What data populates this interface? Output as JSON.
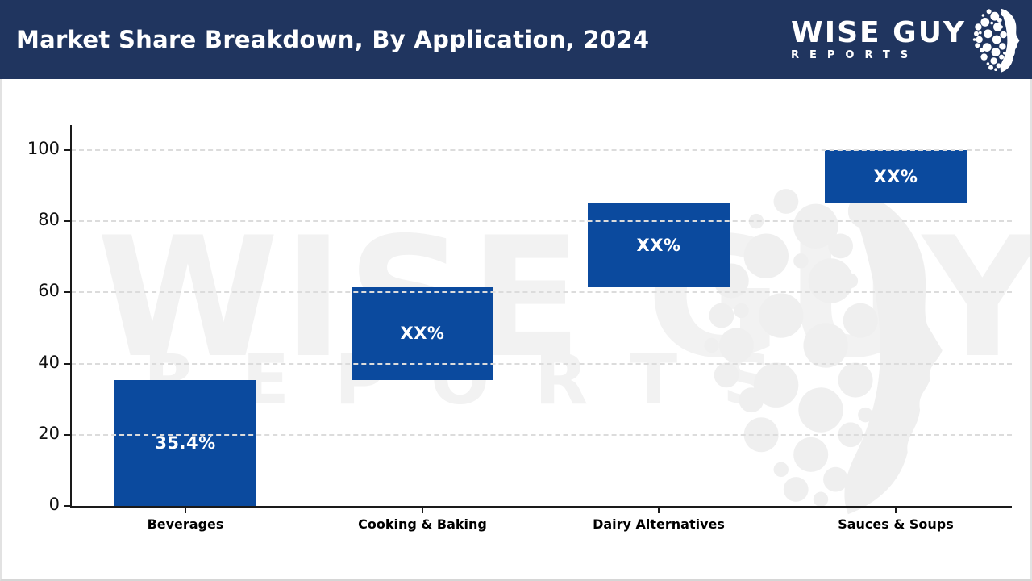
{
  "header": {
    "title": "Market Share Breakdown, By Application, 2024",
    "logo": {
      "line1": "WISE GUY",
      "line2": "REPORTS"
    }
  },
  "watermark": {
    "line1": "WISE GUY",
    "line2": "REPORTS"
  },
  "chart_data": {
    "type": "bar",
    "subtype": "waterfall-floating-segments",
    "title": "Market Share Breakdown, By Application, 2024",
    "categories": [
      "Beverages",
      "Cooking & Baking",
      "Dairy Alternatives",
      "Sauces & Soups"
    ],
    "segments": [
      {
        "category": "Beverages",
        "start": 0,
        "end": 35.4,
        "label": "35.4%"
      },
      {
        "category": "Cooking & Baking",
        "start": 35.4,
        "end": 61.5,
        "label": "XX%"
      },
      {
        "category": "Dairy Alternatives",
        "start": 61.5,
        "end": 85,
        "label": "XX%"
      },
      {
        "category": "Sauces & Soups",
        "start": 85,
        "end": 100,
        "label": "XX%"
      }
    ],
    "yticks": [
      0,
      20,
      40,
      60,
      80,
      100
    ],
    "ylim": [
      0,
      107
    ],
    "xlabel": "",
    "ylabel": "",
    "grid": "horizontal-dashed",
    "legend": "none",
    "bar_color": "#0b4a9e",
    "label_color": "#ffffff"
  },
  "colors": {
    "header_bg": "#20355f",
    "bar": "#0b4a9e",
    "axis": "#1a1a1a",
    "grid_dash": "#dcdcdc",
    "watermark": "#f2f2f2",
    "page_border": "#d6d6d6",
    "title_text": "#ffffff",
    "tick_text": "#111111"
  }
}
